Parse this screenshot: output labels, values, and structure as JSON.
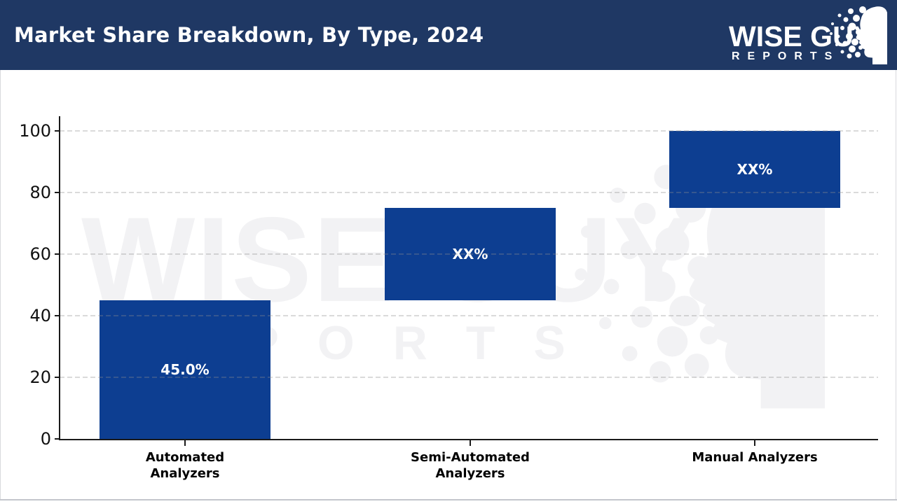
{
  "header": {
    "title": "Market Share Breakdown, By Type, 2024",
    "bg_color": "#1f3864",
    "logo": {
      "line1": "WISE GUY",
      "line2": "REPORTS"
    }
  },
  "watermark": {
    "line1": "WISE GUY",
    "line2": "REPORTS"
  },
  "chart_data": {
    "type": "bar",
    "subtype": "floating-waterfall",
    "title": "Market Share Breakdown, By Type, 2024",
    "categories": [
      "Automated\nAnalyzers",
      "Semi-Automated\nAnalyzers",
      "Manual Analyzers"
    ],
    "bars": [
      {
        "category": "Automated Analyzers",
        "start": 0,
        "end": 45,
        "label": "45.0%"
      },
      {
        "category": "Semi-Automated Analyzers",
        "start": 45,
        "end": 75,
        "label": "XX%"
      },
      {
        "category": "Manual Analyzers",
        "start": 75,
        "end": 100,
        "label": "XX%"
      }
    ],
    "xlabel": "",
    "ylabel": "",
    "ylim": [
      0,
      100
    ],
    "yticks": [
      0,
      20,
      40,
      60,
      80,
      100
    ],
    "grid": "horizontal-dashed",
    "legend": "none",
    "bar_color": "#0d3e91",
    "bar_label_color": "#ffffff",
    "axis_color": "#1a1a1a"
  }
}
